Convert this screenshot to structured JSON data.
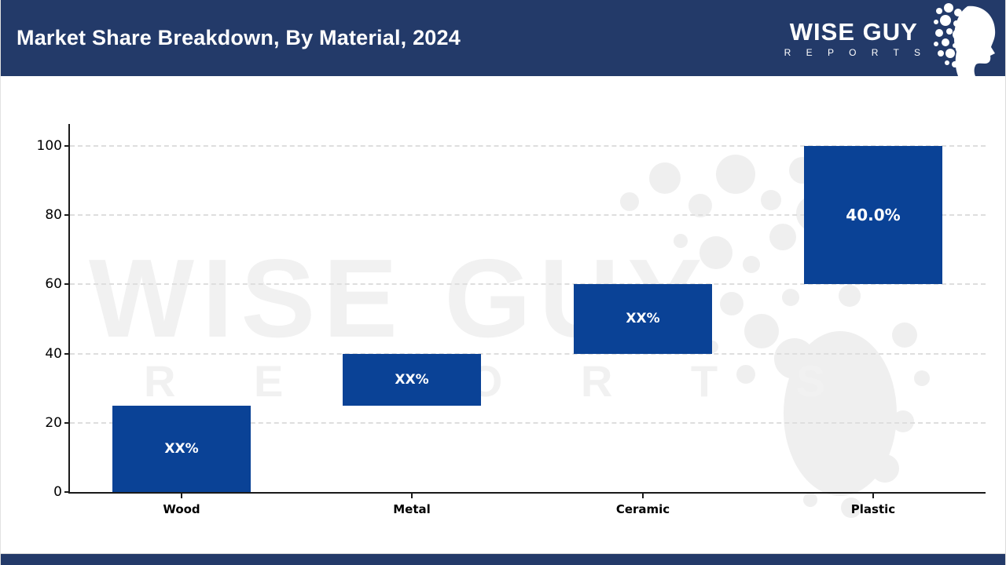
{
  "header": {
    "title": "Market Share Breakdown, By Material, 2024",
    "logo": {
      "primary": "WISE GUY",
      "secondary": "R E P O R T S"
    }
  },
  "watermark": {
    "primary": "WISE GUY",
    "secondary": "R E P O R T S"
  },
  "chart_data": {
    "type": "bar",
    "variant": "waterfall",
    "title": "Market Share Breakdown, By Material, 2024",
    "categories": [
      "Wood",
      "Metal",
      "Ceramic",
      "Plastic"
    ],
    "segments": [
      {
        "category": "Wood",
        "start": 0,
        "end": 25,
        "label": "XX%"
      },
      {
        "category": "Metal",
        "start": 25,
        "end": 40,
        "label": "XX%"
      },
      {
        "category": "Ceramic",
        "start": 40,
        "end": 60,
        "label": "XX%"
      },
      {
        "category": "Plastic",
        "start": 60,
        "end": 100,
        "label": "40.0%"
      }
    ],
    "yticks": [
      0,
      20,
      40,
      60,
      80,
      100
    ],
    "ylim": [
      0,
      105
    ],
    "xlabel": "",
    "ylabel": "",
    "grid": "horizontal-dashed",
    "legend": "none"
  },
  "colors": {
    "header_bg": "#233a69",
    "footer_bg": "#233a69",
    "bar_blue": "#0a4296",
    "bar_label": "#ffffff",
    "grid": "#dedede",
    "axis": "#1a1a1a",
    "watermark": "#f1f1f1"
  }
}
